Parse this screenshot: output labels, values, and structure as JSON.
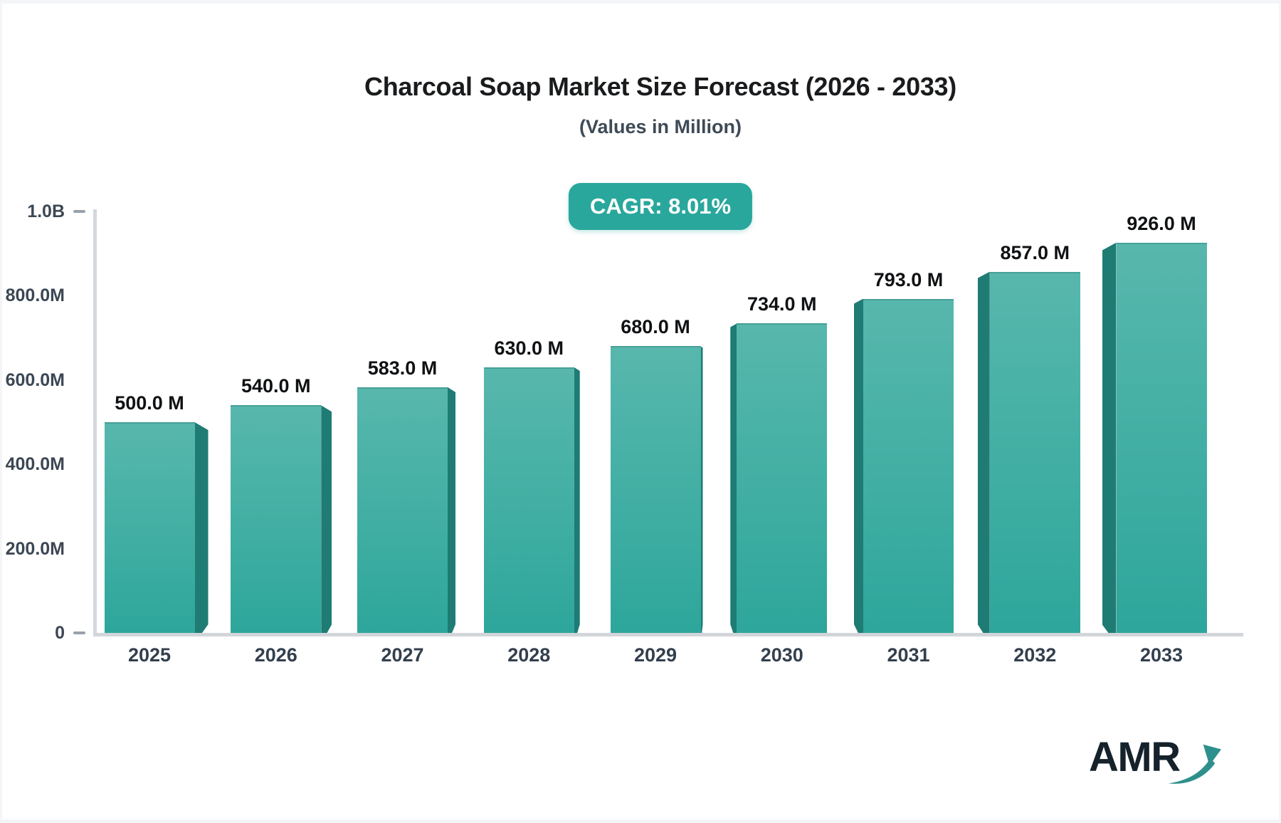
{
  "page": {
    "background": "#f3f5f7",
    "card_background": "#ffffff"
  },
  "header": {
    "title": "Charcoal Soap Market Size Forecast (2026 - 2033)",
    "subtitle": "(Values in Million)",
    "cagr_badge": "CAGR: 8.01%",
    "cagr_badge_color": "#2aa79c"
  },
  "brand": {
    "name": "AMR",
    "arrow_icon": "growth-arrow-icon",
    "text_color": "#15222b",
    "arrow_color": "#2e908c"
  },
  "chart_data": {
    "type": "bar",
    "title": "Charcoal Soap Market Size Forecast (2026 - 2033)",
    "subtitle": "(Values in Million)",
    "cagr_percent": 8.01,
    "categories": [
      "2025",
      "2026",
      "2027",
      "2028",
      "2029",
      "2030",
      "2031",
      "2032",
      "2033"
    ],
    "values": [
      500,
      540,
      583,
      630,
      680,
      734,
      793,
      857,
      926
    ],
    "value_labels": [
      "500.0 M",
      "540.0 M",
      "583.0 M",
      "630.0 M",
      "680.0 M",
      "734.0 M",
      "793.0 M",
      "857.0 M",
      "926.0 M"
    ],
    "unit": "Million",
    "y_axis": {
      "ticks": [
        "0",
        "200.0M",
        "400.0M",
        "600.0M",
        "800.0M",
        "1.0B"
      ],
      "dash_ticks": [
        "0",
        "1.0B"
      ],
      "range": [
        0,
        1000
      ]
    },
    "x_axis": {
      "label": ""
    },
    "grid": false,
    "legend": false,
    "style": {
      "bar_face_top": "#58b7ad",
      "bar_face_bottom": "#2ea69b",
      "bar_side": "#1e7c75",
      "axis_color": "#d4d7db",
      "tick_dash_color": "#98a1ab",
      "value_label_color": "#0f1113",
      "tick_label_color": "#3c4754"
    }
  }
}
